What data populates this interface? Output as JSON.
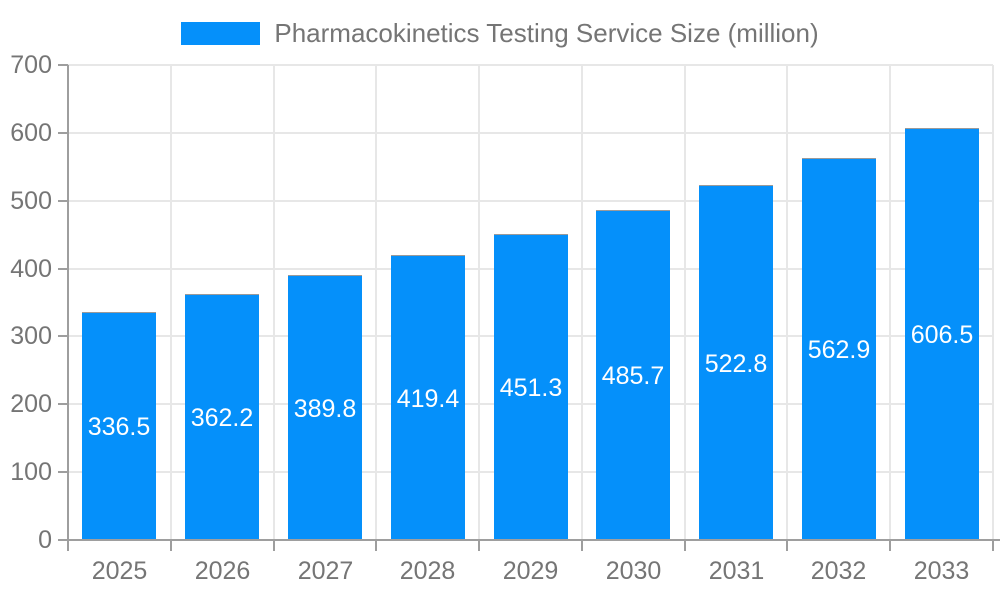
{
  "chart_data": {
    "type": "bar",
    "title": "Pharmacokinetics Testing Service Size (million)",
    "categories": [
      "2025",
      "2026",
      "2027",
      "2028",
      "2029",
      "2030",
      "2031",
      "2032",
      "2033"
    ],
    "values": [
      336.5,
      362.2,
      389.8,
      419.4,
      451.3,
      485.7,
      522.8,
      562.9,
      606.5
    ],
    "value_labels": [
      "336.5",
      "362.2",
      "389.8",
      "419.4",
      "451.3",
      "485.7",
      "522.8",
      "562.9",
      "606.5"
    ],
    "ylim": [
      0,
      700
    ],
    "ytick_step": 100,
    "ytick_labels": [
      "0",
      "100",
      "200",
      "300",
      "400",
      "500",
      "600",
      "700"
    ],
    "grid": true,
    "legend_position": "top",
    "colors": {
      "bar": "#0590fa",
      "bar_top_edge": "#9a9a9a",
      "bar_value_label": "#ffffff",
      "axis_line": "#9e9e9e",
      "gridline": "#e7e7e7",
      "tick_label": "#757575",
      "legend_text": "#757575"
    }
  }
}
